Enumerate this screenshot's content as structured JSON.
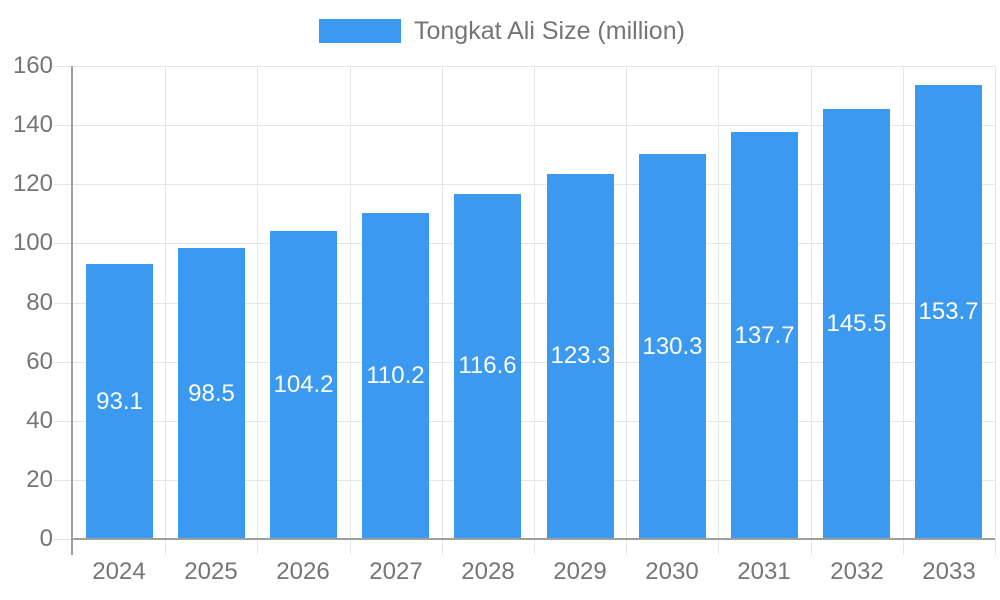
{
  "legend": {
    "label": "Tongkat Ali Size (million)",
    "swatch_icon": "legend-color-swatch"
  },
  "chart_data": {
    "type": "bar",
    "title": "",
    "xlabel": "",
    "ylabel": "",
    "series_name": "Tongkat Ali Size (million)",
    "categories": [
      "2024",
      "2025",
      "2026",
      "2027",
      "2028",
      "2029",
      "2030",
      "2031",
      "2032",
      "2033"
    ],
    "values": [
      93.1,
      98.5,
      104.2,
      110.2,
      116.6,
      123.3,
      130.3,
      137.7,
      145.5,
      153.7
    ],
    "value_labels": [
      "93.1",
      "98.5",
      "104.2",
      "110.2",
      "116.6",
      "123.3",
      "130.3",
      "137.7",
      "145.5",
      "153.7"
    ],
    "ylim": [
      0,
      160
    ],
    "ytick_step": 20,
    "yticks": [
      0,
      20,
      40,
      60,
      80,
      100,
      120,
      140,
      160
    ],
    "grid": true,
    "legend_position": "top",
    "bar_color": "#3b99f0",
    "value_label_color": "#ffffff",
    "axis_text_color": "#757575",
    "axis_line_color": "#9e9e9e",
    "gridline_color": "#e6e6e6",
    "background_color": "#ffffff"
  }
}
